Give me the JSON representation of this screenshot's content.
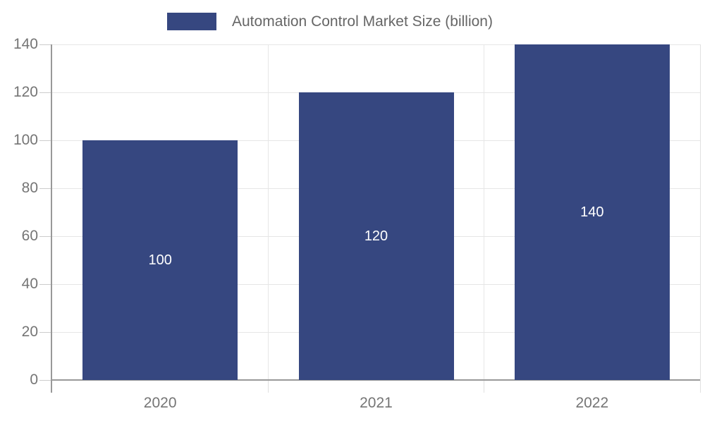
{
  "legend": {
    "label": "Automation Control Market Size (billion)"
  },
  "chart_data": {
    "type": "bar",
    "title": "Automation Control Market Size (billion)",
    "series_name": "Automation Control Market Size (billion)",
    "categories": [
      "2020",
      "2021",
      "2022"
    ],
    "values": [
      100,
      120,
      140
    ],
    "value_labels": [
      "100",
      "120",
      "140"
    ],
    "xlabel": "",
    "ylabel": "",
    "ylim": [
      0,
      140
    ],
    "yticks": [
      0,
      20,
      40,
      60,
      80,
      100,
      120,
      140
    ],
    "ytick_labels": [
      "0",
      "20",
      "40",
      "60",
      "80",
      "100",
      "120",
      "140"
    ],
    "grid": true,
    "legend_position": "top",
    "colors": {
      "bar": "#364780",
      "value_label": "#ffffff",
      "axis_line": "#999999",
      "grid_line": "#e6e6e6",
      "minor_tick": "#cccccc",
      "boundary_tick": "#e0e0e0",
      "axis_label": "#757575",
      "legend_text": "#666666",
      "background": "#ffffff"
    }
  }
}
